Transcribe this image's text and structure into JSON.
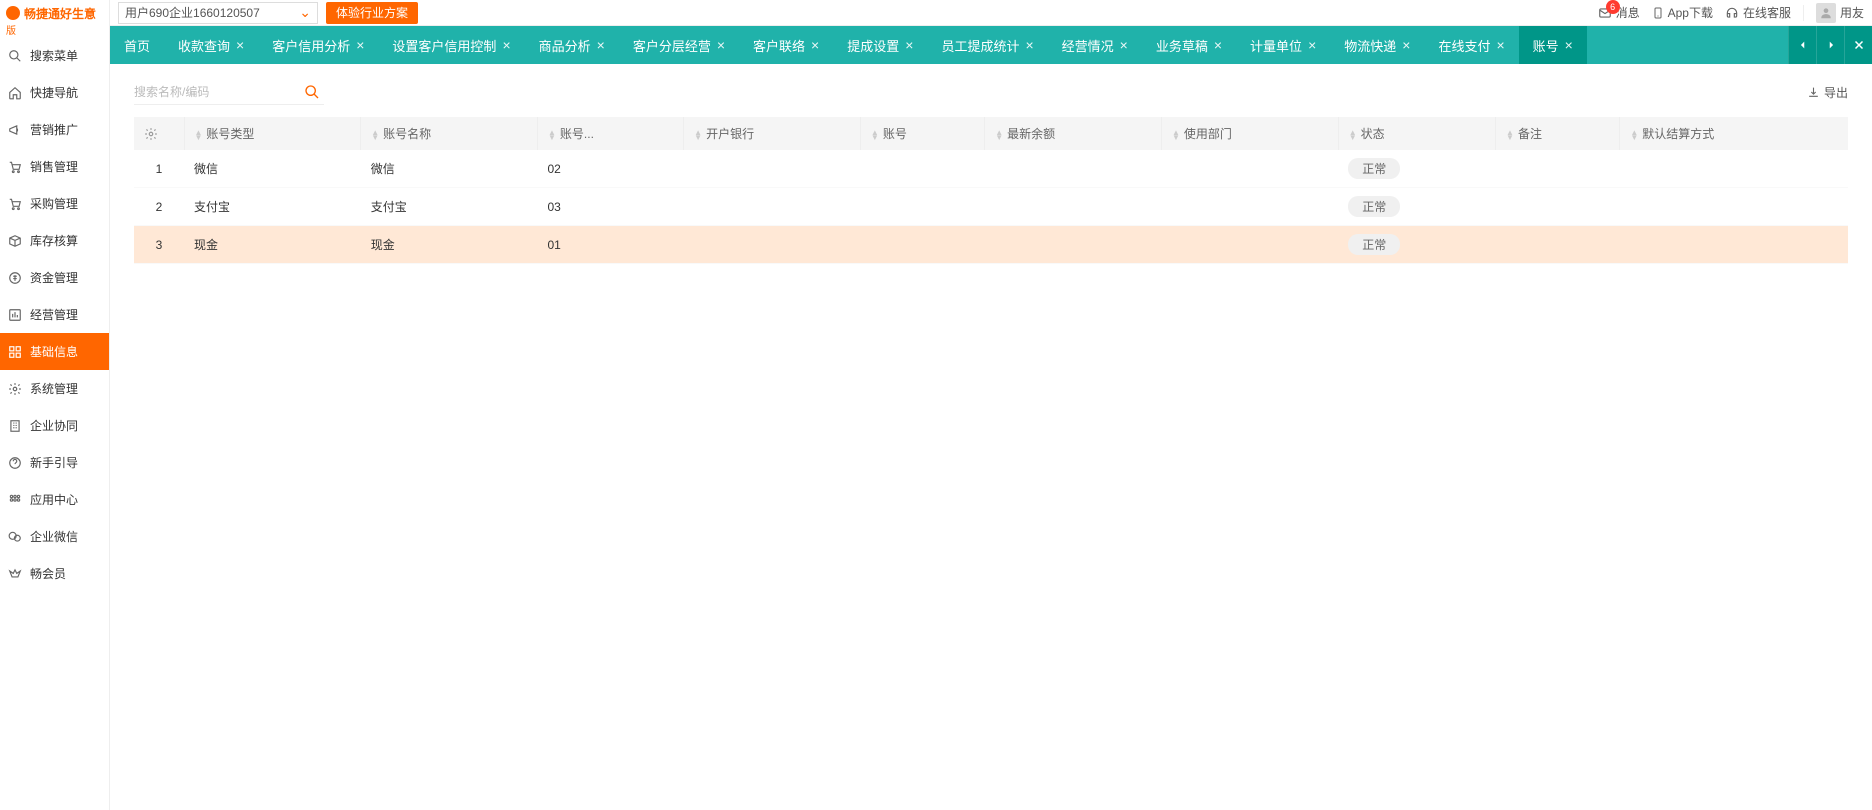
{
  "brand": {
    "name": "畅捷通好生意",
    "sub": "版"
  },
  "user_selector": "用户690企业1660120507",
  "top_action_btn": "体验行业方案",
  "top_links": {
    "messages": "消息",
    "msg_badge": "6",
    "app_download": "App下载",
    "support": "在线客服",
    "username": "用友"
  },
  "sidebar": [
    {
      "label": "搜索菜单",
      "icon": "search"
    },
    {
      "label": "快捷导航",
      "icon": "home"
    },
    {
      "label": "营销推广",
      "icon": "megaphone"
    },
    {
      "label": "销售管理",
      "icon": "cart"
    },
    {
      "label": "采购管理",
      "icon": "cart"
    },
    {
      "label": "库存核算",
      "icon": "box"
    },
    {
      "label": "资金管理",
      "icon": "coin"
    },
    {
      "label": "经营管理",
      "icon": "chart"
    },
    {
      "label": "基础信息",
      "icon": "grid",
      "active": true
    },
    {
      "label": "系统管理",
      "icon": "gear"
    },
    {
      "label": "企业协同",
      "icon": "building"
    },
    {
      "label": "新手引导",
      "icon": "help"
    },
    {
      "label": "应用中心",
      "icon": "apps"
    },
    {
      "label": "企业微信",
      "icon": "wechat"
    },
    {
      "label": "畅会员",
      "icon": "vip"
    }
  ],
  "tabs": [
    {
      "label": "首页",
      "closable": false
    },
    {
      "label": "收款查询",
      "closable": true
    },
    {
      "label": "客户信用分析",
      "closable": true
    },
    {
      "label": "设置客户信用控制",
      "closable": true
    },
    {
      "label": "商品分析",
      "closable": true
    },
    {
      "label": "客户分层经营",
      "closable": true
    },
    {
      "label": "客户联络",
      "closable": true
    },
    {
      "label": "提成设置",
      "closable": true
    },
    {
      "label": "员工提成统计",
      "closable": true
    },
    {
      "label": "经营情况",
      "closable": true
    },
    {
      "label": "业务草稿",
      "closable": true
    },
    {
      "label": "计量单位",
      "closable": true
    },
    {
      "label": "物流快递",
      "closable": true
    },
    {
      "label": "在线支付",
      "closable": true
    },
    {
      "label": "账号",
      "closable": true,
      "active": true
    }
  ],
  "search_placeholder": "搜索名称/编码",
  "export_label": "导出",
  "columns": [
    "账号类型",
    "账号名称",
    "账号...",
    "开户银行",
    "账号",
    "最新余额",
    "使用部门",
    "状态",
    "备注",
    "默认结算方式"
  ],
  "rows": [
    {
      "idx": "1",
      "type": "微信",
      "name": "微信",
      "code": "02",
      "bank": "",
      "account": "",
      "balance": "",
      "dept": "",
      "status": "正常",
      "remark": "",
      "settle": ""
    },
    {
      "idx": "2",
      "type": "支付宝",
      "name": "支付宝",
      "code": "03",
      "bank": "",
      "account": "",
      "balance": "",
      "dept": "",
      "status": "正常",
      "remark": "",
      "settle": ""
    },
    {
      "idx": "3",
      "type": "现金",
      "name": "现金",
      "code": "01",
      "bank": "",
      "account": "",
      "balance": "",
      "dept": "",
      "status": "正常",
      "remark": "",
      "settle": "",
      "highlight": true
    }
  ]
}
